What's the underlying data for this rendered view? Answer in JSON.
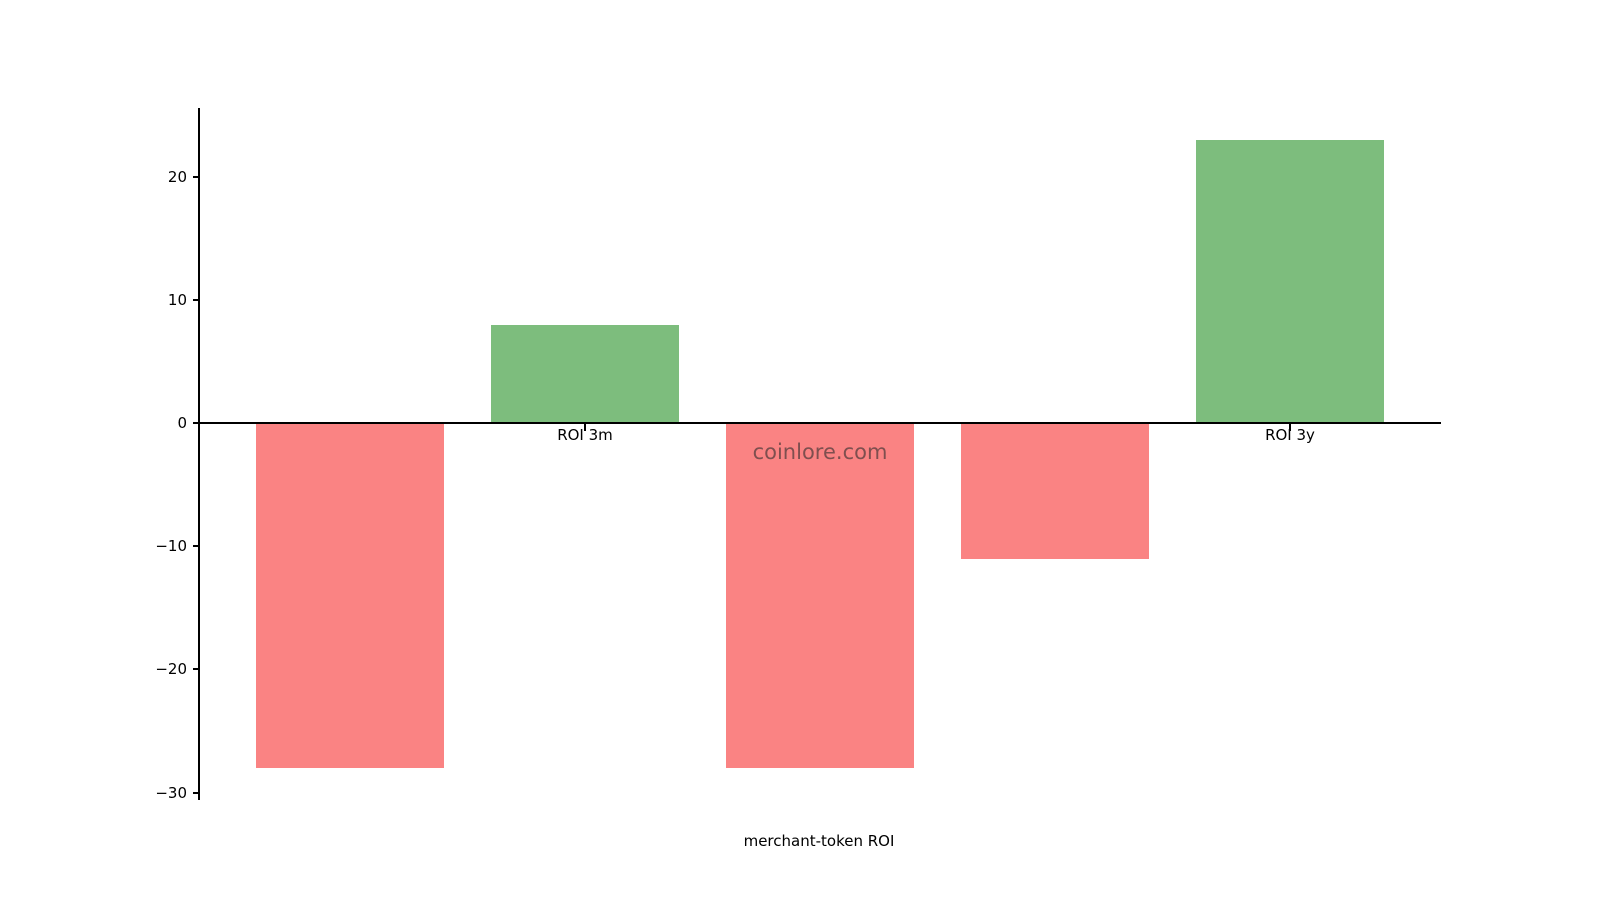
{
  "watermark": "coinlore.com",
  "chart_data": {
    "type": "bar",
    "title": "",
    "xlabel": "merchant-token ROI",
    "ylabel": "",
    "categories": [
      "",
      "ROI 3m",
      "",
      "",
      "ROI 3y"
    ],
    "values": [
      -28,
      8,
      -28,
      -11,
      23
    ],
    "bar_colors": [
      "#fa8383",
      "#7dbd7d",
      "#fa8383",
      "#fa8383",
      "#7dbd7d"
    ],
    "positive_color": "#7dbd7d",
    "negative_color": "#fa8383",
    "y_tick_labels": [
      "20",
      "10",
      "0",
      "−10",
      "−20",
      "−30"
    ],
    "y_tick_values": [
      20,
      10,
      0,
      -10,
      -20,
      -30
    ],
    "ylim": [
      -30.6,
      25.6
    ],
    "grid": false,
    "legend_position": "none",
    "x_tick_labels_visible": [
      "ROI 3m",
      "ROI 3y"
    ],
    "axis_color": "#000000"
  }
}
